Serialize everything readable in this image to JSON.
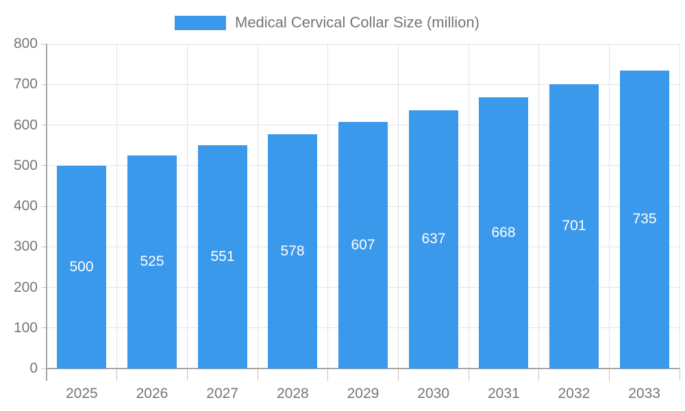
{
  "legend": {
    "label": "Medical Cervical Collar Size (million)"
  },
  "chart_data": {
    "type": "bar",
    "title": "Medical Cervical Collar Size (million)",
    "categories": [
      "2025",
      "2026",
      "2027",
      "2028",
      "2029",
      "2030",
      "2031",
      "2032",
      "2033"
    ],
    "values": [
      500,
      525,
      551,
      578,
      607,
      637,
      668,
      701,
      735
    ],
    "xlabel": "",
    "ylabel": "",
    "ylim": [
      0,
      800
    ],
    "ytick_interval": 100,
    "yticks": [
      0,
      100,
      200,
      300,
      400,
      500,
      600,
      700,
      800
    ],
    "grid": true,
    "legend_position": "top",
    "value_labels": "inside-center",
    "colors": {
      "bar": "#3b99ec",
      "value_label": "#ffffff",
      "axis": "#a5a5a5",
      "tick": "#c2c2c2",
      "gridline": "#e3e3e3",
      "text": "#757575",
      "background": "#ffffff"
    }
  }
}
